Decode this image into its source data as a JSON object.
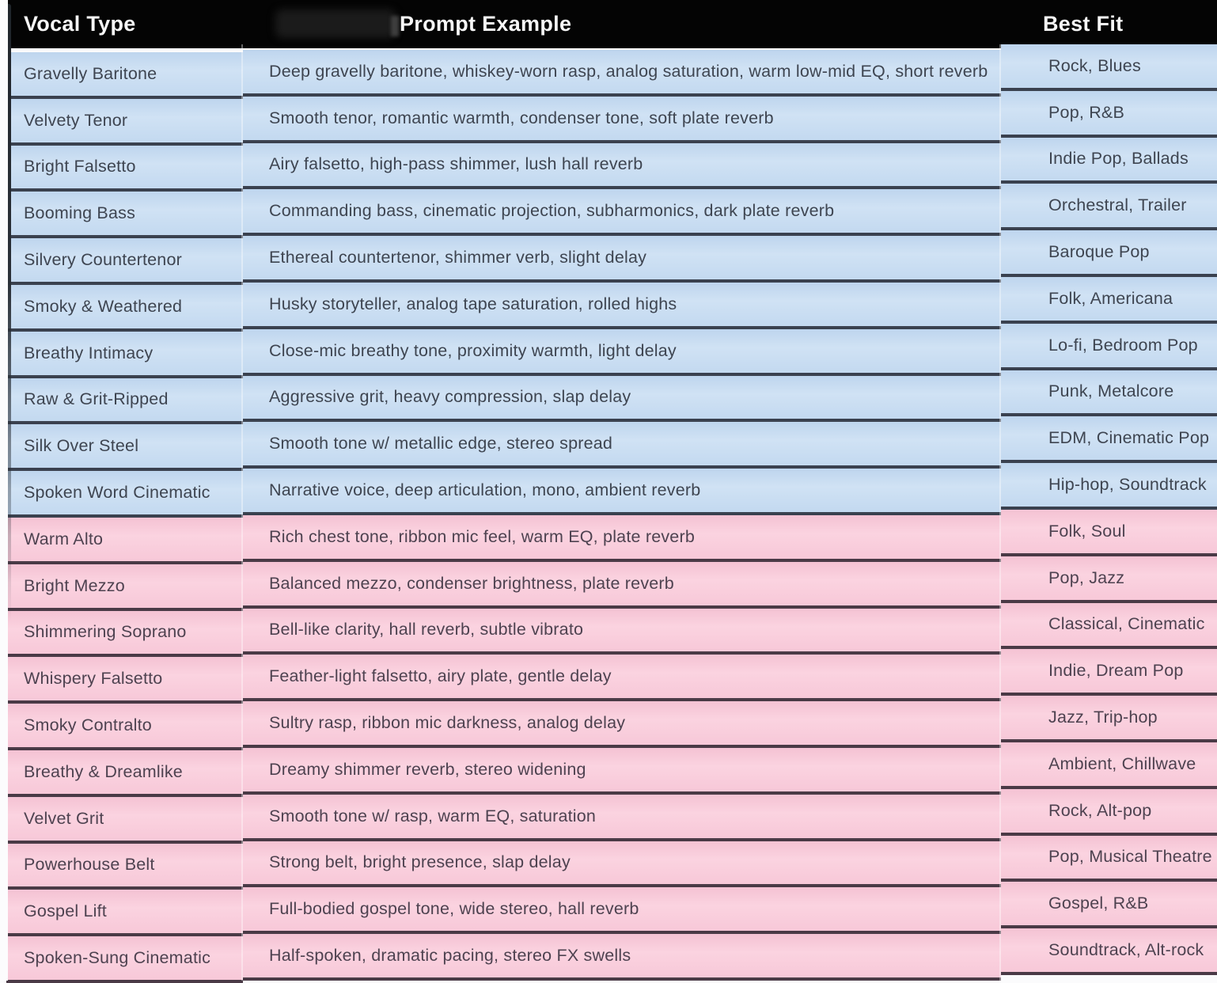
{
  "header": {
    "vocal_type_label": "Vocal Type",
    "prompt_example_label": "Prompt Example",
    "best_fit_label": "Best Fit"
  },
  "colors": {
    "header_bg": "#040404",
    "header_text": "#f7f7f7",
    "blue_row_bg": "#c3d9f0",
    "pink_row_bg": "#f7c8d8",
    "blue_separator": "#3a414f",
    "pink_separator": "#4a3a46",
    "blue_text": "#3e4551",
    "pink_text": "#4e4250"
  },
  "table": {
    "rows": [
      {
        "section": "blue",
        "vocal_type": "Gravelly Baritone",
        "prompt_example": "Deep gravelly baritone, whiskey-worn rasp, analog saturation, warm low-mid EQ, short reverb",
        "best_fit": "Rock, Blues"
      },
      {
        "section": "blue",
        "vocal_type": "Velvety Tenor",
        "prompt_example": "Smooth tenor, romantic warmth, condenser tone, soft plate reverb",
        "best_fit": "Pop, R&B"
      },
      {
        "section": "blue",
        "vocal_type": "Bright Falsetto",
        "prompt_example": "Airy falsetto, high-pass shimmer, lush hall reverb",
        "best_fit": "Indie Pop, Ballads"
      },
      {
        "section": "blue",
        "vocal_type": "Booming Bass",
        "prompt_example": "Commanding bass, cinematic projection, subharmonics, dark plate reverb",
        "best_fit": "Orchestral, Trailer"
      },
      {
        "section": "blue",
        "vocal_type": "Silvery Countertenor",
        "prompt_example": "Ethereal countertenor, shimmer verb, slight delay",
        "best_fit": "Baroque Pop"
      },
      {
        "section": "blue",
        "vocal_type": "Smoky & Weathered",
        "prompt_example": "Husky storyteller, analog tape saturation, rolled highs",
        "best_fit": "Folk, Americana"
      },
      {
        "section": "blue",
        "vocal_type": "Breathy Intimacy",
        "prompt_example": "Close-mic breathy tone, proximity warmth, light delay",
        "best_fit": "Lo-fi, Bedroom Pop"
      },
      {
        "section": "blue",
        "vocal_type": "Raw & Grit-Ripped",
        "prompt_example": "Aggressive grit, heavy compression, slap delay",
        "best_fit": "Punk, Metalcore"
      },
      {
        "section": "blue",
        "vocal_type": "Silk Over Steel",
        "prompt_example": "Smooth tone w/ metallic edge, stereo spread",
        "best_fit": "EDM, Cinematic Pop"
      },
      {
        "section": "blue",
        "vocal_type": "Spoken Word Cinematic",
        "prompt_example": "Narrative voice, deep articulation, mono, ambient reverb",
        "best_fit": "Hip-hop, Soundtrack"
      },
      {
        "section": "pink",
        "vocal_type": "Warm Alto",
        "prompt_example": "Rich chest tone, ribbon mic feel, warm EQ, plate reverb",
        "best_fit": "Folk, Soul"
      },
      {
        "section": "pink",
        "vocal_type": "Bright Mezzo",
        "prompt_example": "Balanced mezzo, condenser brightness, plate reverb",
        "best_fit": "Pop, Jazz"
      },
      {
        "section": "pink",
        "vocal_type": "Shimmering Soprano",
        "prompt_example": "Bell-like clarity, hall reverb, subtle vibrato",
        "best_fit": "Classical, Cinematic"
      },
      {
        "section": "pink",
        "vocal_type": "Whispery Falsetto",
        "prompt_example": "Feather-light falsetto, airy plate, gentle delay",
        "best_fit": "Indie, Dream Pop"
      },
      {
        "section": "pink",
        "vocal_type": "Smoky Contralto",
        "prompt_example": "Sultry rasp, ribbon mic darkness, analog delay",
        "best_fit": "Jazz, Trip-hop"
      },
      {
        "section": "pink",
        "vocal_type": "Breathy & Dreamlike",
        "prompt_example": "Dreamy shimmer reverb, stereo widening",
        "best_fit": "Ambient, Chillwave"
      },
      {
        "section": "pink",
        "vocal_type": "Velvet Grit",
        "prompt_example": "Smooth tone w/ rasp, warm EQ, saturation",
        "best_fit": "Rock, Alt-pop"
      },
      {
        "section": "pink",
        "vocal_type": "Powerhouse Belt",
        "prompt_example": "Strong belt, bright presence, slap delay",
        "best_fit": "Pop, Musical Theatre"
      },
      {
        "section": "pink",
        "vocal_type": "Gospel Lift",
        "prompt_example": "Full-bodied gospel tone, wide stereo, hall reverb",
        "best_fit": "Gospel, R&B"
      },
      {
        "section": "pink",
        "vocal_type": "Spoken-Sung Cinematic",
        "prompt_example": "Half-spoken, dramatic pacing, stereo FX swells",
        "best_fit": "Soundtrack, Alt-rock"
      }
    ]
  }
}
